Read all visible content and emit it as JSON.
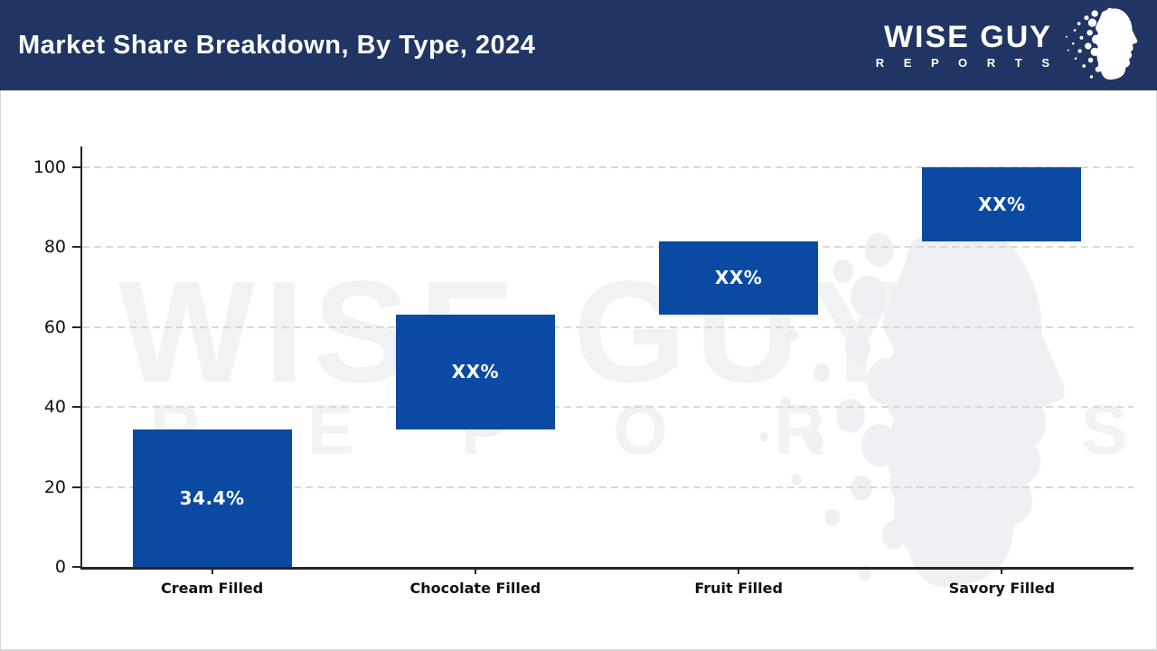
{
  "header": {
    "title": "Market Share Breakdown, By Type, 2024",
    "bg_color": "#213564",
    "logo": {
      "line1": "WISE GUY",
      "line2": "R E P O R T S"
    }
  },
  "watermark": {
    "line1": "WISE GUY",
    "line2": "R E P O R T S"
  },
  "chart_data": {
    "type": "bar",
    "subtype": "waterfall",
    "title": "Market Share Breakdown, By Type, 2024",
    "xlabel": "",
    "ylabel": "",
    "ylim": [
      0,
      100
    ],
    "yticks": [
      0,
      20,
      40,
      60,
      80,
      100
    ],
    "grid": "horizontal-dashed",
    "legend": "none",
    "bar_color": "#0b4aa2",
    "axis_color": "#262626",
    "grid_color": "#d9d9d9",
    "value_label_color": "#ffffff",
    "categories": [
      "Cream Filled",
      "Chocolate Filled",
      "Fruit Filled",
      "Savory Filled"
    ],
    "segments": [
      {
        "category": "Cream Filled",
        "start": 0,
        "end": 34.4,
        "value": 34.4,
        "label": "34.4%"
      },
      {
        "category": "Chocolate Filled",
        "start": 34.4,
        "end": 63.2,
        "value": 28.8,
        "label": "XX%"
      },
      {
        "category": "Fruit Filled",
        "start": 63.2,
        "end": 81.5,
        "value": 18.3,
        "label": "XX%"
      },
      {
        "category": "Savory Filled",
        "start": 81.5,
        "end": 100.0,
        "value": 18.5,
        "label": "XX%"
      }
    ]
  }
}
